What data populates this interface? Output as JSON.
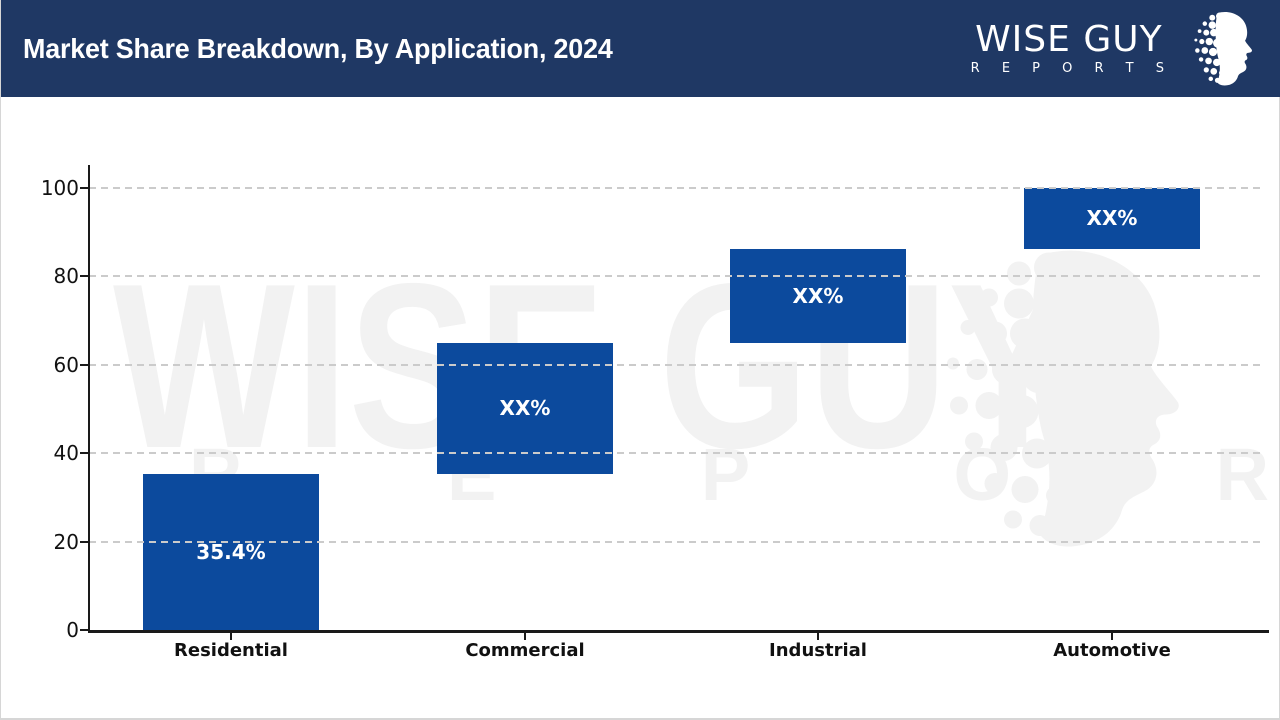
{
  "header": {
    "title": "Market Share Breakdown, By Application, 2024",
    "bg_color": "#1f3864",
    "logo": {
      "line1": "WISE GUY",
      "line2": "R E P O R T S"
    }
  },
  "watermark": {
    "line1": "WISE GUY",
    "line2": "R E P O R T S"
  },
  "chart_data": {
    "type": "bar",
    "subtype": "waterfall",
    "title": "Market Share Breakdown, By Application, 2024",
    "categories": [
      "Residential",
      "Commercial",
      "Industrial",
      "Automotive"
    ],
    "segments": [
      {
        "category": "Residential",
        "start": 0,
        "end": 35.4,
        "label": "35.4%"
      },
      {
        "category": "Commercial",
        "start": 35.4,
        "end": 65.0,
        "label": "XX%"
      },
      {
        "category": "Industrial",
        "start": 65.0,
        "end": 86.3,
        "label": "XX%"
      },
      {
        "category": "Automotive",
        "start": 86.3,
        "end": 100.0,
        "label": "XX%"
      }
    ],
    "yticks": [
      0,
      20,
      40,
      60,
      80,
      100
    ],
    "ylim": [
      0,
      105
    ],
    "xlabel": "",
    "ylabel": "",
    "grid": "horizontal-dashed",
    "legend": "none",
    "bar_color": "#0c4a9d",
    "label_color": "#ffffff",
    "axis_color": "#1a1a1a",
    "gridline_color": "#cbcbcb"
  }
}
